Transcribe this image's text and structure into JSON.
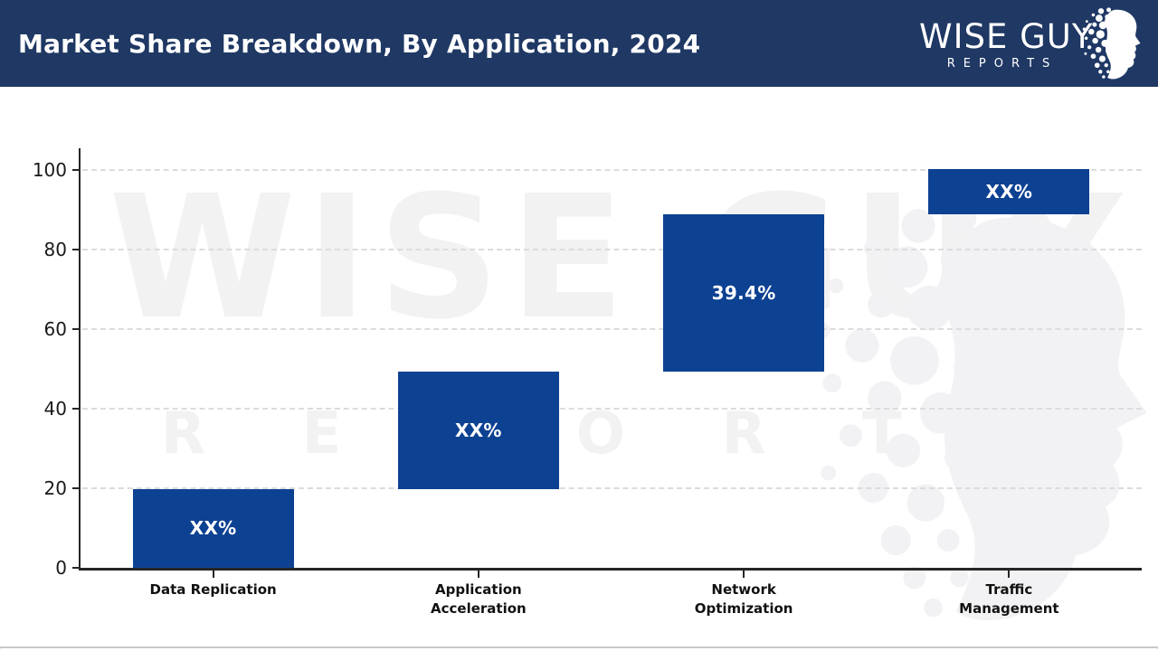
{
  "header": {
    "title": "Market Share Breakdown, By Application, 2024",
    "logo": {
      "primary": "WISE GUY",
      "secondary": "REPORTS"
    }
  },
  "watermark": {
    "primary": "WISE GUY",
    "secondary": "R E P O R T S"
  },
  "colors": {
    "header_bg": "#1f3864",
    "bar_fill": "#0d4192",
    "bar_label": "#ffffff",
    "gridline": "#dcdcdc",
    "axis": "#262626",
    "watermark": "#f2f2f3"
  },
  "chart_data": {
    "type": "bar",
    "subtype": "waterfall",
    "title": "Market Share Breakdown, By Application, 2024",
    "categories": [
      "Data Replication",
      "Application Acceleration",
      "Network Optimization",
      "Traffic Management"
    ],
    "category_lines": [
      [
        "Data Replication"
      ],
      [
        "Application",
        "Acceleration"
      ],
      [
        "Network",
        "Optimization"
      ],
      [
        "Traffic",
        "Management"
      ]
    ],
    "bars": [
      {
        "category": "Data Replication",
        "start": 0,
        "end": 19.8,
        "value": 19.8,
        "label": "XX%"
      },
      {
        "category": "Application Acceleration",
        "start": 19.8,
        "end": 49.3,
        "value": 29.5,
        "label": "XX%"
      },
      {
        "category": "Network Optimization",
        "start": 49.4,
        "end": 88.8,
        "value": 39.4,
        "label": "39.4%"
      },
      {
        "category": "Traffic Management",
        "start": 88.9,
        "end": 100.3,
        "value": 11.4,
        "label": "XX%"
      }
    ],
    "xlabel": "",
    "ylabel": "",
    "ylim": [
      0,
      100
    ],
    "yticks": [
      0,
      20,
      40,
      60,
      80,
      100
    ],
    "grid": "dashed-horizontal",
    "legend": "none"
  }
}
